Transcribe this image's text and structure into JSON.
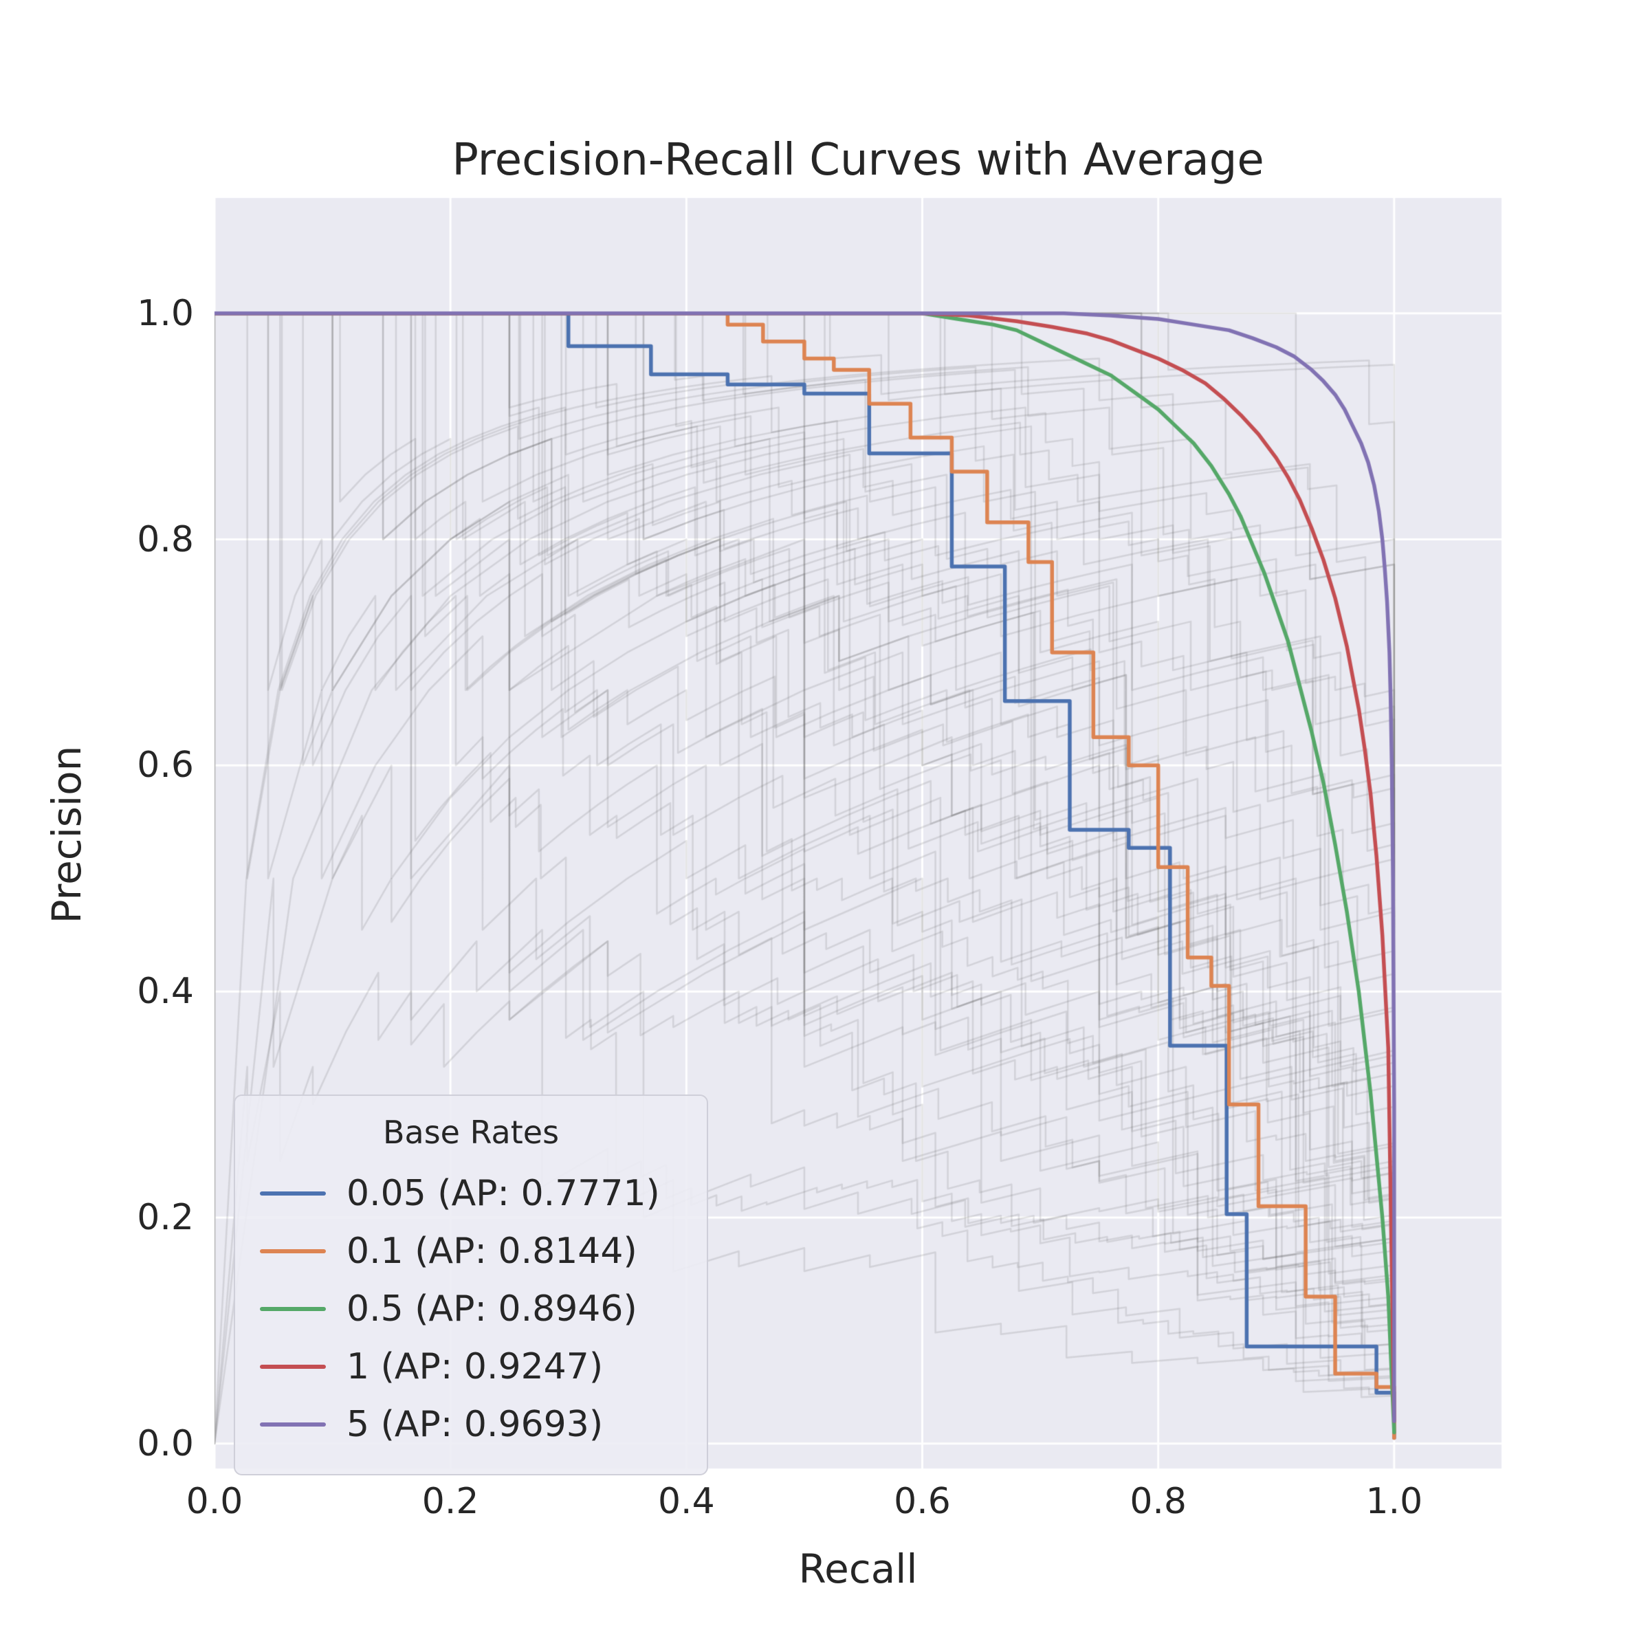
{
  "figure": {
    "title": "Precision-Recall Curves with Average"
  },
  "chart_data": {
    "type": "line",
    "title": "Precision-Recall Curves with Average",
    "xlabel": "Recall",
    "ylabel": "Precision",
    "xlim": [
      0,
      1.091
    ],
    "ylim": [
      -0.022,
      1.102
    ],
    "grid": true,
    "axes_bg": "#EAEAF2",
    "grid_color": "#FFFFFF",
    "x_ticks": [
      0.0,
      0.2,
      0.4,
      0.6,
      0.8,
      1.0
    ],
    "x_tick_labels": [
      "0.0",
      "0.2",
      "0.4",
      "0.6",
      "0.8",
      "1.0"
    ],
    "y_ticks": [
      0.0,
      0.2,
      0.4,
      0.6,
      0.8,
      1.0
    ],
    "y_tick_labels": [
      "0.0",
      "0.2",
      "0.4",
      "0.6",
      "0.8",
      "1.0"
    ],
    "legend": {
      "title": "Base Rates",
      "position": "lower-left"
    },
    "series": [
      {
        "name": "base-rate-0.05",
        "label": "0.05 (AP: 0.7771)",
        "base_rate": 0.05,
        "ap": 0.7771,
        "color": "#4C72B0",
        "points": [
          [
            0,
            1
          ],
          [
            0.3,
            1
          ],
          [
            0.3,
            0.971
          ],
          [
            0.37,
            0.971
          ],
          [
            0.37,
            0.946
          ],
          [
            0.435,
            0.946
          ],
          [
            0.435,
            0.937
          ],
          [
            0.5,
            0.937
          ],
          [
            0.5,
            0.929
          ],
          [
            0.555,
            0.929
          ],
          [
            0.555,
            0.876
          ],
          [
            0.625,
            0.876
          ],
          [
            0.625,
            0.776
          ],
          [
            0.67,
            0.776
          ],
          [
            0.67,
            0.657
          ],
          [
            0.725,
            0.657
          ],
          [
            0.725,
            0.543
          ],
          [
            0.775,
            0.543
          ],
          [
            0.775,
            0.527
          ],
          [
            0.81,
            0.527
          ],
          [
            0.81,
            0.352
          ],
          [
            0.858,
            0.352
          ],
          [
            0.858,
            0.203
          ],
          [
            0.875,
            0.203
          ],
          [
            0.875,
            0.086
          ],
          [
            0.985,
            0.086
          ],
          [
            0.985,
            0.045
          ],
          [
            1.0,
            0.045
          ],
          [
            1.0,
            0.005
          ]
        ]
      },
      {
        "name": "base-rate-0.1",
        "label": "0.1 (AP: 0.8144)",
        "base_rate": 0.1,
        "ap": 0.8144,
        "color": "#DD8452",
        "points": [
          [
            0,
            1
          ],
          [
            0.435,
            1
          ],
          [
            0.435,
            0.99
          ],
          [
            0.465,
            0.99
          ],
          [
            0.465,
            0.975
          ],
          [
            0.5,
            0.975
          ],
          [
            0.5,
            0.96
          ],
          [
            0.525,
            0.96
          ],
          [
            0.525,
            0.95
          ],
          [
            0.555,
            0.95
          ],
          [
            0.555,
            0.92
          ],
          [
            0.59,
            0.92
          ],
          [
            0.59,
            0.89
          ],
          [
            0.625,
            0.89
          ],
          [
            0.625,
            0.86
          ],
          [
            0.655,
            0.86
          ],
          [
            0.655,
            0.815
          ],
          [
            0.69,
            0.815
          ],
          [
            0.69,
            0.78
          ],
          [
            0.71,
            0.78
          ],
          [
            0.71,
            0.7
          ],
          [
            0.745,
            0.7
          ],
          [
            0.745,
            0.625
          ],
          [
            0.775,
            0.625
          ],
          [
            0.775,
            0.6
          ],
          [
            0.8,
            0.6
          ],
          [
            0.8,
            0.51
          ],
          [
            0.825,
            0.51
          ],
          [
            0.825,
            0.43
          ],
          [
            0.845,
            0.43
          ],
          [
            0.845,
            0.405
          ],
          [
            0.86,
            0.405
          ],
          [
            0.86,
            0.3
          ],
          [
            0.885,
            0.3
          ],
          [
            0.885,
            0.21
          ],
          [
            0.925,
            0.21
          ],
          [
            0.925,
            0.13
          ],
          [
            0.95,
            0.13
          ],
          [
            0.95,
            0.062
          ],
          [
            0.985,
            0.062
          ],
          [
            0.985,
            0.05
          ],
          [
            1.0,
            0.05
          ],
          [
            1.0,
            0.005
          ]
        ]
      },
      {
        "name": "base-rate-0.5",
        "label": "0.5 (AP: 0.8946)",
        "base_rate": 0.5,
        "ap": 0.8946,
        "color": "#55A868",
        "points": [
          [
            0,
            1
          ],
          [
            0.6,
            1
          ],
          [
            0.63,
            0.995
          ],
          [
            0.66,
            0.99
          ],
          [
            0.68,
            0.985
          ],
          [
            0.7,
            0.975
          ],
          [
            0.72,
            0.965
          ],
          [
            0.74,
            0.955
          ],
          [
            0.76,
            0.945
          ],
          [
            0.78,
            0.93
          ],
          [
            0.8,
            0.915
          ],
          [
            0.815,
            0.9
          ],
          [
            0.83,
            0.885
          ],
          [
            0.845,
            0.865
          ],
          [
            0.86,
            0.84
          ],
          [
            0.87,
            0.82
          ],
          [
            0.88,
            0.795
          ],
          [
            0.89,
            0.77
          ],
          [
            0.9,
            0.74
          ],
          [
            0.91,
            0.71
          ],
          [
            0.92,
            0.67
          ],
          [
            0.93,
            0.63
          ],
          [
            0.94,
            0.585
          ],
          [
            0.95,
            0.53
          ],
          [
            0.96,
            0.47
          ],
          [
            0.97,
            0.4
          ],
          [
            0.98,
            0.31
          ],
          [
            0.99,
            0.2
          ],
          [
            0.995,
            0.13
          ],
          [
            1.0,
            0.01
          ]
        ]
      },
      {
        "name": "base-rate-1",
        "label": "1 (AP: 0.9247)",
        "base_rate": 1,
        "ap": 0.9247,
        "color": "#C44E52",
        "points": [
          [
            0,
            1
          ],
          [
            0.6,
            1
          ],
          [
            0.64,
            0.998
          ],
          [
            0.68,
            0.993
          ],
          [
            0.71,
            0.988
          ],
          [
            0.74,
            0.982
          ],
          [
            0.76,
            0.976
          ],
          [
            0.78,
            0.968
          ],
          [
            0.8,
            0.96
          ],
          [
            0.82,
            0.95
          ],
          [
            0.84,
            0.938
          ],
          [
            0.855,
            0.925
          ],
          [
            0.87,
            0.91
          ],
          [
            0.885,
            0.893
          ],
          [
            0.9,
            0.872
          ],
          [
            0.91,
            0.855
          ],
          [
            0.92,
            0.835
          ],
          [
            0.93,
            0.81
          ],
          [
            0.94,
            0.782
          ],
          [
            0.95,
            0.748
          ],
          [
            0.96,
            0.705
          ],
          [
            0.97,
            0.65
          ],
          [
            0.975,
            0.615
          ],
          [
            0.98,
            0.575
          ],
          [
            0.985,
            0.52
          ],
          [
            0.99,
            0.45
          ],
          [
            0.995,
            0.35
          ],
          [
            1.0,
            0.02
          ]
        ]
      },
      {
        "name": "base-rate-5",
        "label": "5 (AP: 0.9693)",
        "base_rate": 5,
        "ap": 0.9693,
        "color": "#8172B3",
        "points": [
          [
            0,
            1
          ],
          [
            0.72,
            1
          ],
          [
            0.76,
            0.998
          ],
          [
            0.8,
            0.995
          ],
          [
            0.83,
            0.99
          ],
          [
            0.86,
            0.985
          ],
          [
            0.88,
            0.978
          ],
          [
            0.9,
            0.97
          ],
          [
            0.915,
            0.962
          ],
          [
            0.93,
            0.95
          ],
          [
            0.94,
            0.94
          ],
          [
            0.95,
            0.928
          ],
          [
            0.958,
            0.915
          ],
          [
            0.965,
            0.9
          ],
          [
            0.972,
            0.885
          ],
          [
            0.978,
            0.868
          ],
          [
            0.983,
            0.848
          ],
          [
            0.987,
            0.825
          ],
          [
            0.99,
            0.8
          ],
          [
            0.992,
            0.775
          ],
          [
            0.994,
            0.745
          ],
          [
            0.996,
            0.7
          ],
          [
            0.997,
            0.66
          ],
          [
            0.998,
            0.6
          ],
          [
            0.999,
            0.5
          ],
          [
            1.0,
            0.3
          ],
          [
            1.0,
            0.02
          ]
        ]
      }
    ],
    "background_curves": {
      "description": "individual per-trial precision-recall curves",
      "count": 65,
      "color": "#555555",
      "alpha": 0.16,
      "line_width": 2.5,
      "seed": 11
    }
  }
}
